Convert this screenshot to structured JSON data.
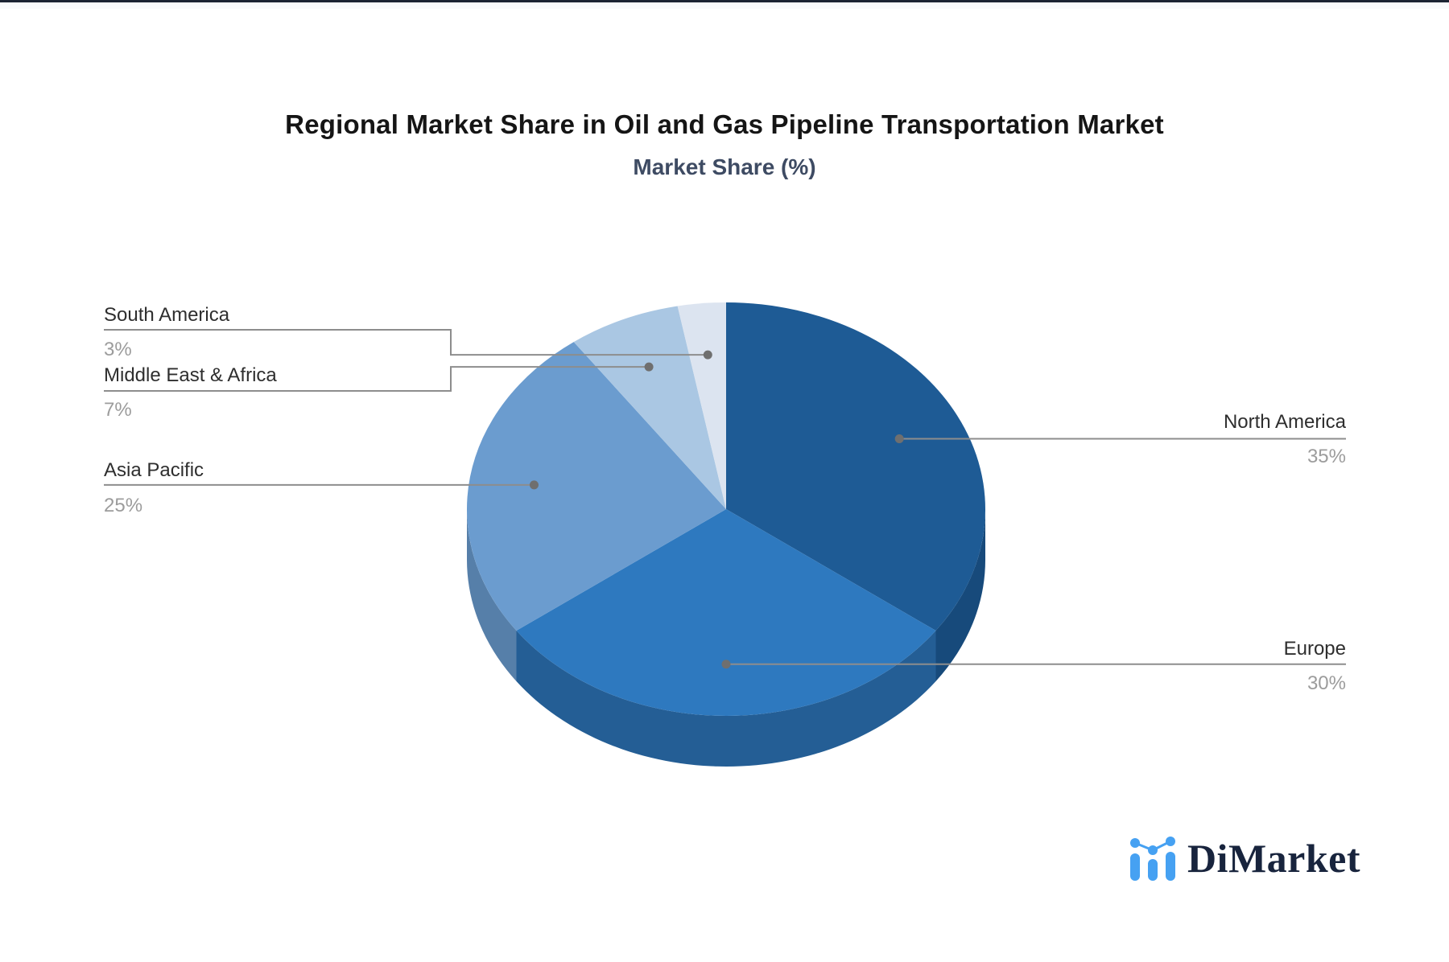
{
  "header": {
    "title": "Regional Market Share in Oil and Gas Pipeline Transportation Market",
    "subtitle": "Market Share (%)"
  },
  "chart_data": {
    "type": "pie",
    "style": "3d",
    "title": "Regional Market Share in Oil and Gas Pipeline Transportation Market",
    "subtitle": "Market Share (%)",
    "unit": "%",
    "start_angle_deg": 0,
    "direction": "clockwise",
    "categories": [
      "North America",
      "Europe",
      "Asia Pacific",
      "Middle East & Africa",
      "South America"
    ],
    "values": [
      35,
      30,
      25,
      7,
      3
    ],
    "slices": [
      {
        "name": "North America",
        "value": 35,
        "value_label": "35%",
        "color": "#1e5b95",
        "side_color": "#174a7b",
        "label_side": "right"
      },
      {
        "name": "Europe",
        "value": 30,
        "value_label": "30%",
        "color": "#2e79bf",
        "side_color": "#245e95",
        "label_side": "right"
      },
      {
        "name": "Asia Pacific",
        "value": 25,
        "value_label": "25%",
        "color": "#6b9ccf",
        "side_color": "#567fa9",
        "label_side": "left"
      },
      {
        "name": "Middle East & Africa",
        "value": 7,
        "value_label": "7%",
        "color": "#aac7e3",
        "side_color": "#8aa8c6",
        "label_side": "left"
      },
      {
        "name": "South America",
        "value": 3,
        "value_label": "3%",
        "color": "#dce4f0",
        "side_color": "#b9c6d8",
        "label_side": "left"
      }
    ],
    "callout_line_color": "#8d8d8d",
    "callout_dot_color": "#6f6f6f",
    "legend_position": "callout-labels",
    "grid": false
  },
  "branding": {
    "name": "DiMarket",
    "icon": "bar-chart-logo-icon",
    "icon_color": "#46a1f2",
    "text_color": "#18243d"
  }
}
